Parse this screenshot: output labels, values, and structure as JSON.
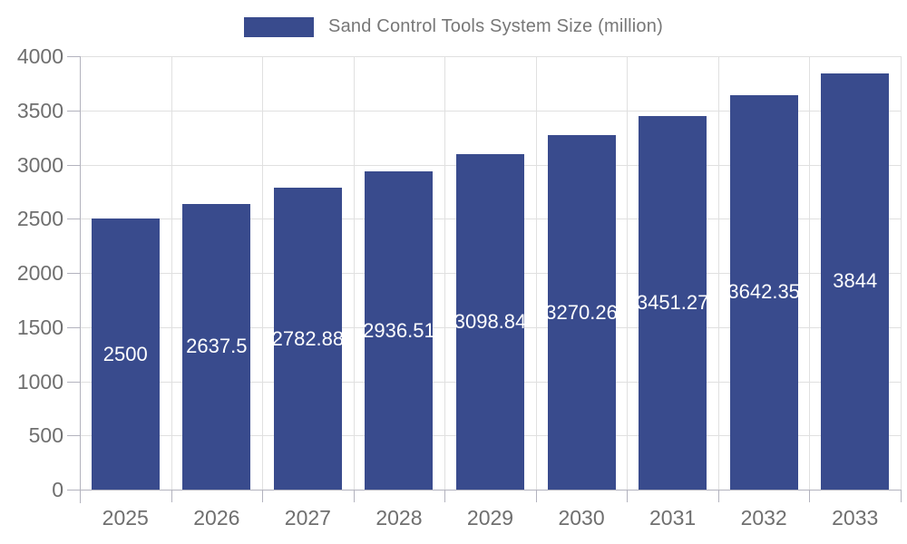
{
  "chart_data": {
    "type": "bar",
    "title": "",
    "legend": "Sand Control Tools System Size (million)",
    "legend_position": "top",
    "categories": [
      "2025",
      "2026",
      "2027",
      "2028",
      "2029",
      "2030",
      "2031",
      "2032",
      "2033"
    ],
    "series": [
      {
        "name": "Sand Control Tools System Size (million)",
        "values": [
          2500,
          2637.5,
          2782.88,
          2936.51,
          3098.84,
          3270.26,
          3451.27,
          3642.35,
          3844
        ],
        "labels": [
          "2500",
          "2637.5",
          "2782.88",
          "2936.51",
          "3098.84",
          "3270.26",
          "3451.27",
          "3642.35",
          "3844"
        ]
      }
    ],
    "xlabel": "",
    "ylabel": "",
    "ylim": [
      0,
      4000
    ],
    "yticks": [
      0,
      500,
      1000,
      1500,
      2000,
      2500,
      3000,
      3500,
      4000
    ],
    "grid": true,
    "colors": {
      "bar": "#394b8d",
      "bar_label": "#ffffff",
      "gridline": "#e0e0e0",
      "axis_line": "#b3b3be",
      "tick_label": "#6f6f6f",
      "legend_text": "#777777"
    }
  }
}
